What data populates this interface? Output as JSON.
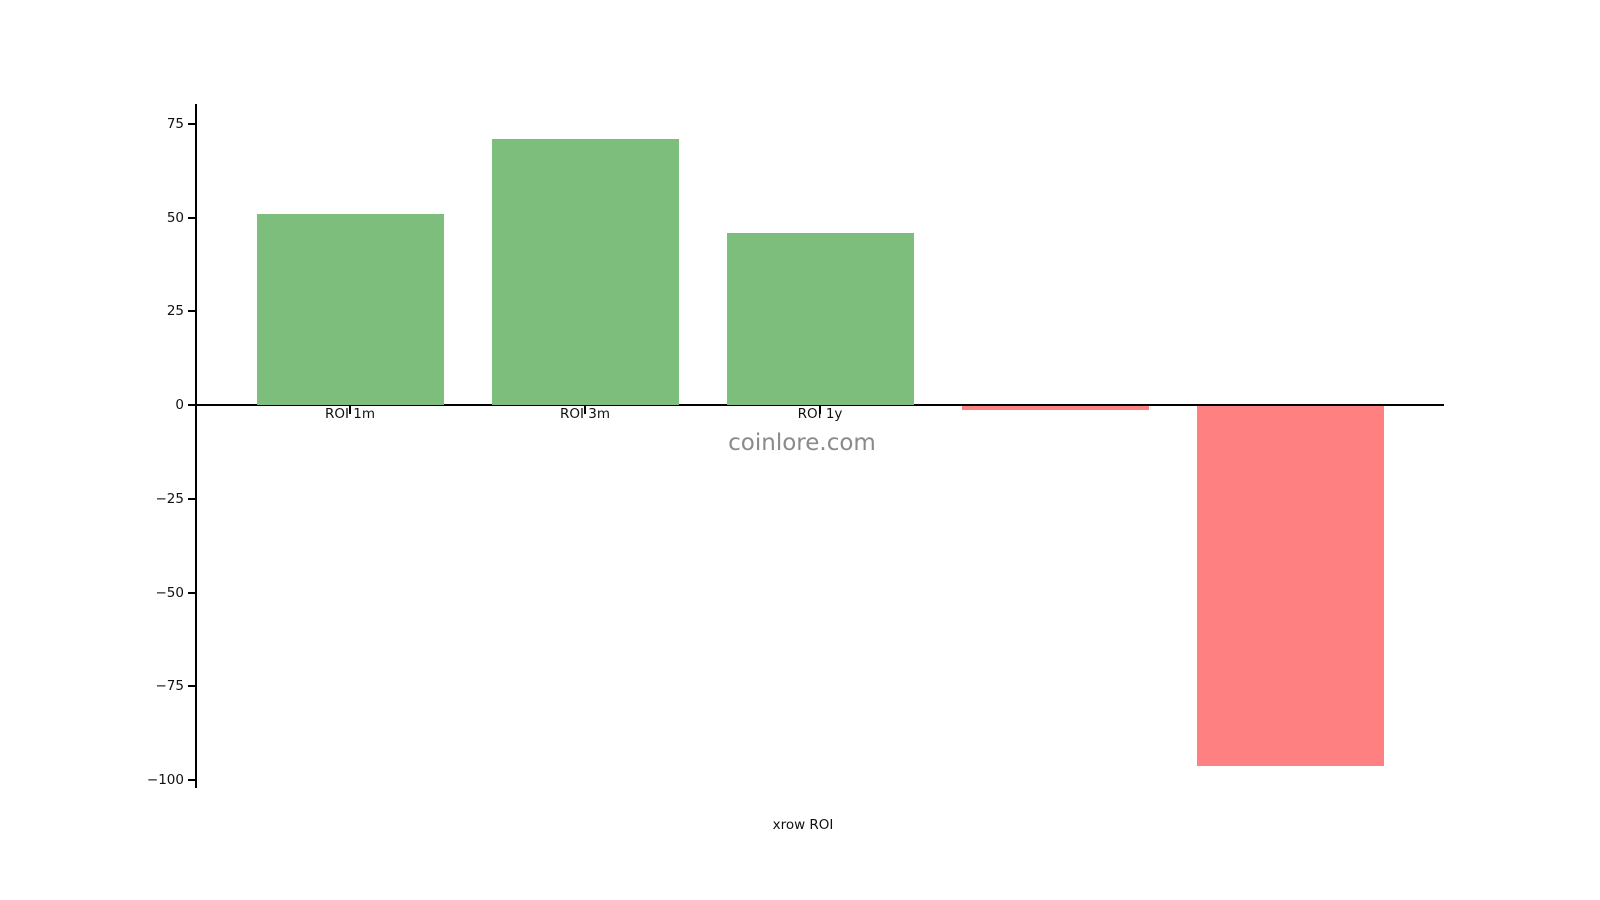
{
  "chart_data": {
    "type": "bar",
    "title": "",
    "xlabel": "xrow ROI",
    "ylabel": "",
    "categories": [
      "ROI 1m",
      "ROI 3m",
      "ROI 1y",
      "",
      ""
    ],
    "values": [
      51,
      71,
      46,
      -1,
      -96
    ],
    "bar_colors": [
      "#7dbe7d",
      "#7dbe7d",
      "#7dbe7d",
      "#ff8080",
      "#ff8080"
    ],
    "positive_color": "#7dbe7d",
    "negative_color": "#ff8080",
    "yticks": [
      75,
      50,
      25,
      0,
      -25,
      -50,
      -75,
      -100
    ],
    "ylim": [
      -105,
      80
    ],
    "grid": false,
    "legend_position": "none",
    "watermark": "coinlore.com",
    "axis_color": "#000000",
    "watermark_color": "#8a8a8a"
  }
}
